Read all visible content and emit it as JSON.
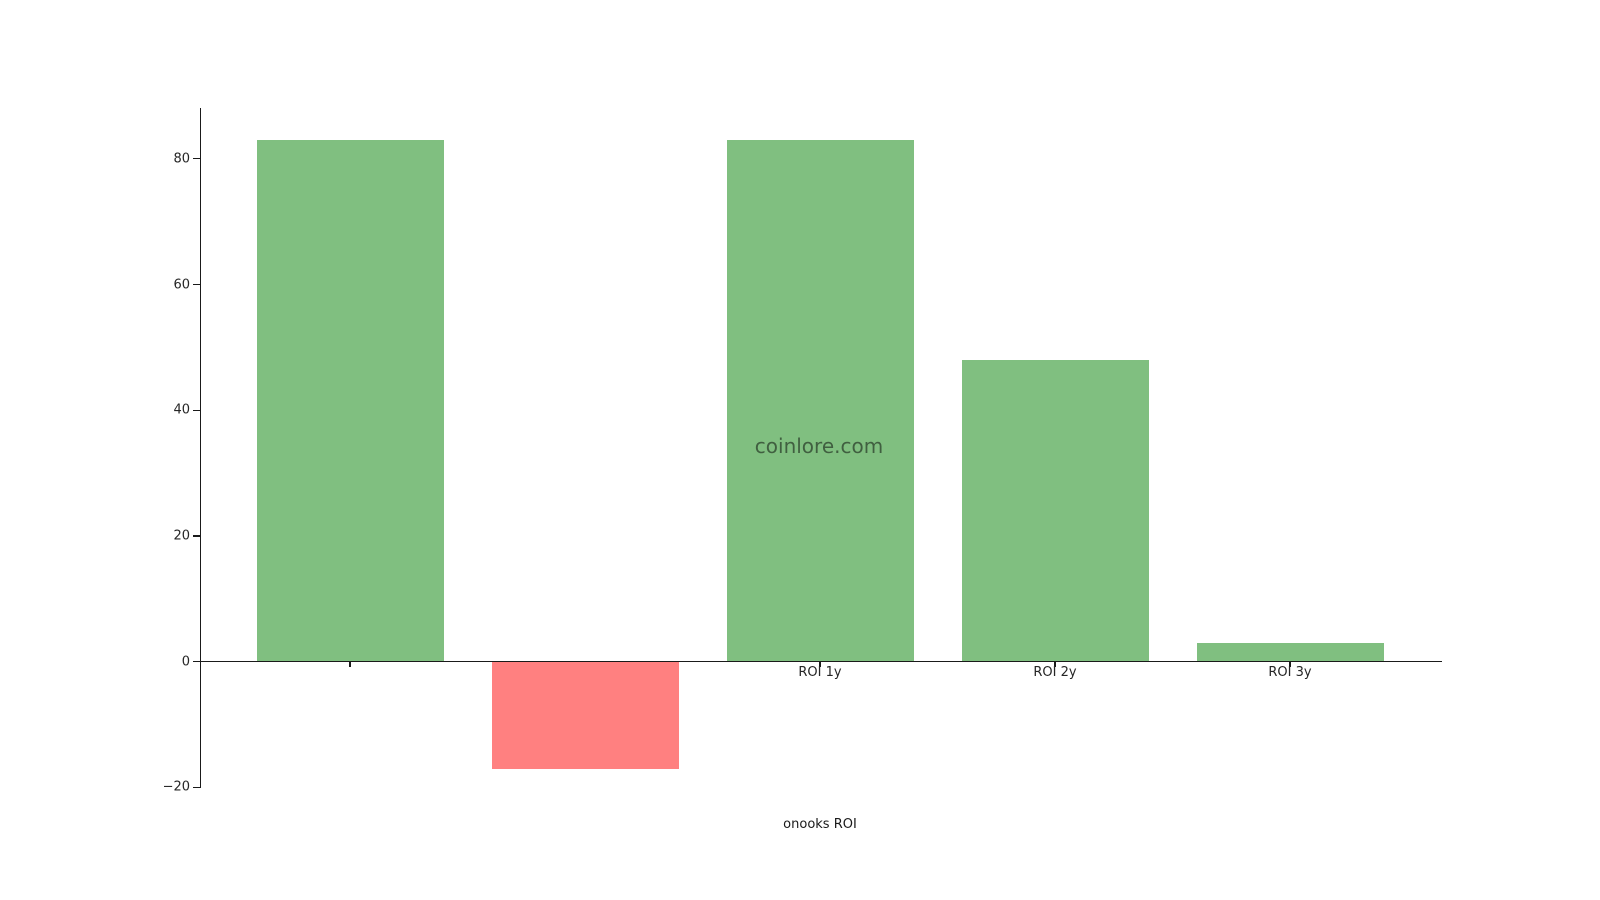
{
  "watermark": "coinlore.com",
  "chart_data": {
    "type": "bar",
    "title": "",
    "xlabel": "onooks ROI",
    "ylabel": "",
    "categories": [
      "",
      "",
      "ROI 1y",
      "ROI 2y",
      "ROI 3y"
    ],
    "values": [
      83,
      -17,
      83,
      48,
      3
    ],
    "yticks": [
      80,
      60,
      40,
      20,
      0,
      -20
    ],
    "ylim": [
      -24,
      88
    ],
    "grid": false,
    "legend": null,
    "colors": {
      "positive": "#80bf80",
      "negative": "#ff8080",
      "axis": "#1a1a1a",
      "tick_text": "#262626",
      "watermark": "rgba(0,0,0,0.5)",
      "background": "#ffffff"
    }
  }
}
